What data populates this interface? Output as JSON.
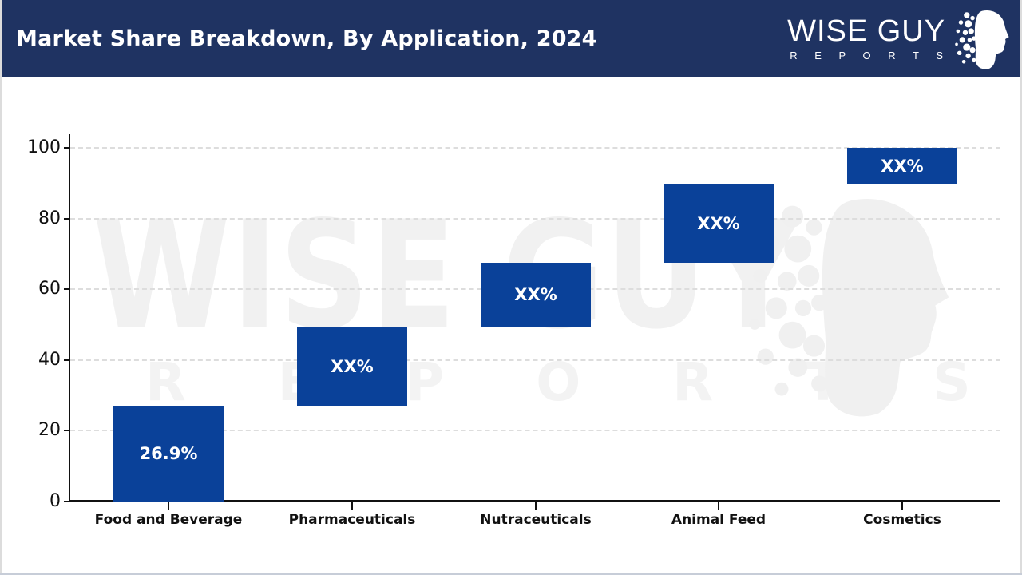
{
  "header": {
    "title": "Market Share Breakdown, By Application, 2024",
    "bg_color": "#1f3362",
    "logo": {
      "line1": "WISE GUY",
      "line2": "R E P O R T S"
    }
  },
  "watermark": {
    "line1": "WISE GUY",
    "line2": "R E P O R T S"
  },
  "chart_data": {
    "type": "bar",
    "subtype": "waterfall-floating-bars",
    "title": "Market Share Breakdown, By Application, 2024",
    "categories": [
      "Food and Beverage",
      "Pharmaceuticals",
      "Nutraceuticals",
      "Animal Feed",
      "Cosmetics"
    ],
    "segments": [
      {
        "category": "Food and Beverage",
        "start": 0,
        "end": 26.9,
        "label": "26.9%"
      },
      {
        "category": "Pharmaceuticals",
        "start": 26.9,
        "end": 49.4,
        "label": "XX%"
      },
      {
        "category": "Nutraceuticals",
        "start": 49.4,
        "end": 67.4,
        "label": "XX%"
      },
      {
        "category": "Animal Feed",
        "start": 67.4,
        "end": 89.8,
        "label": "XX%"
      },
      {
        "category": "Cosmetics",
        "start": 89.8,
        "end": 100,
        "label": "XX%"
      }
    ],
    "y_ticks": [
      0,
      20,
      40,
      60,
      80,
      100
    ],
    "ylim": [
      0,
      104
    ],
    "xlabel": "",
    "ylabel": "",
    "grid": "horizontal-dashed",
    "legend": "none",
    "bar_color": "#0a4199",
    "axis_color": "#111111"
  }
}
